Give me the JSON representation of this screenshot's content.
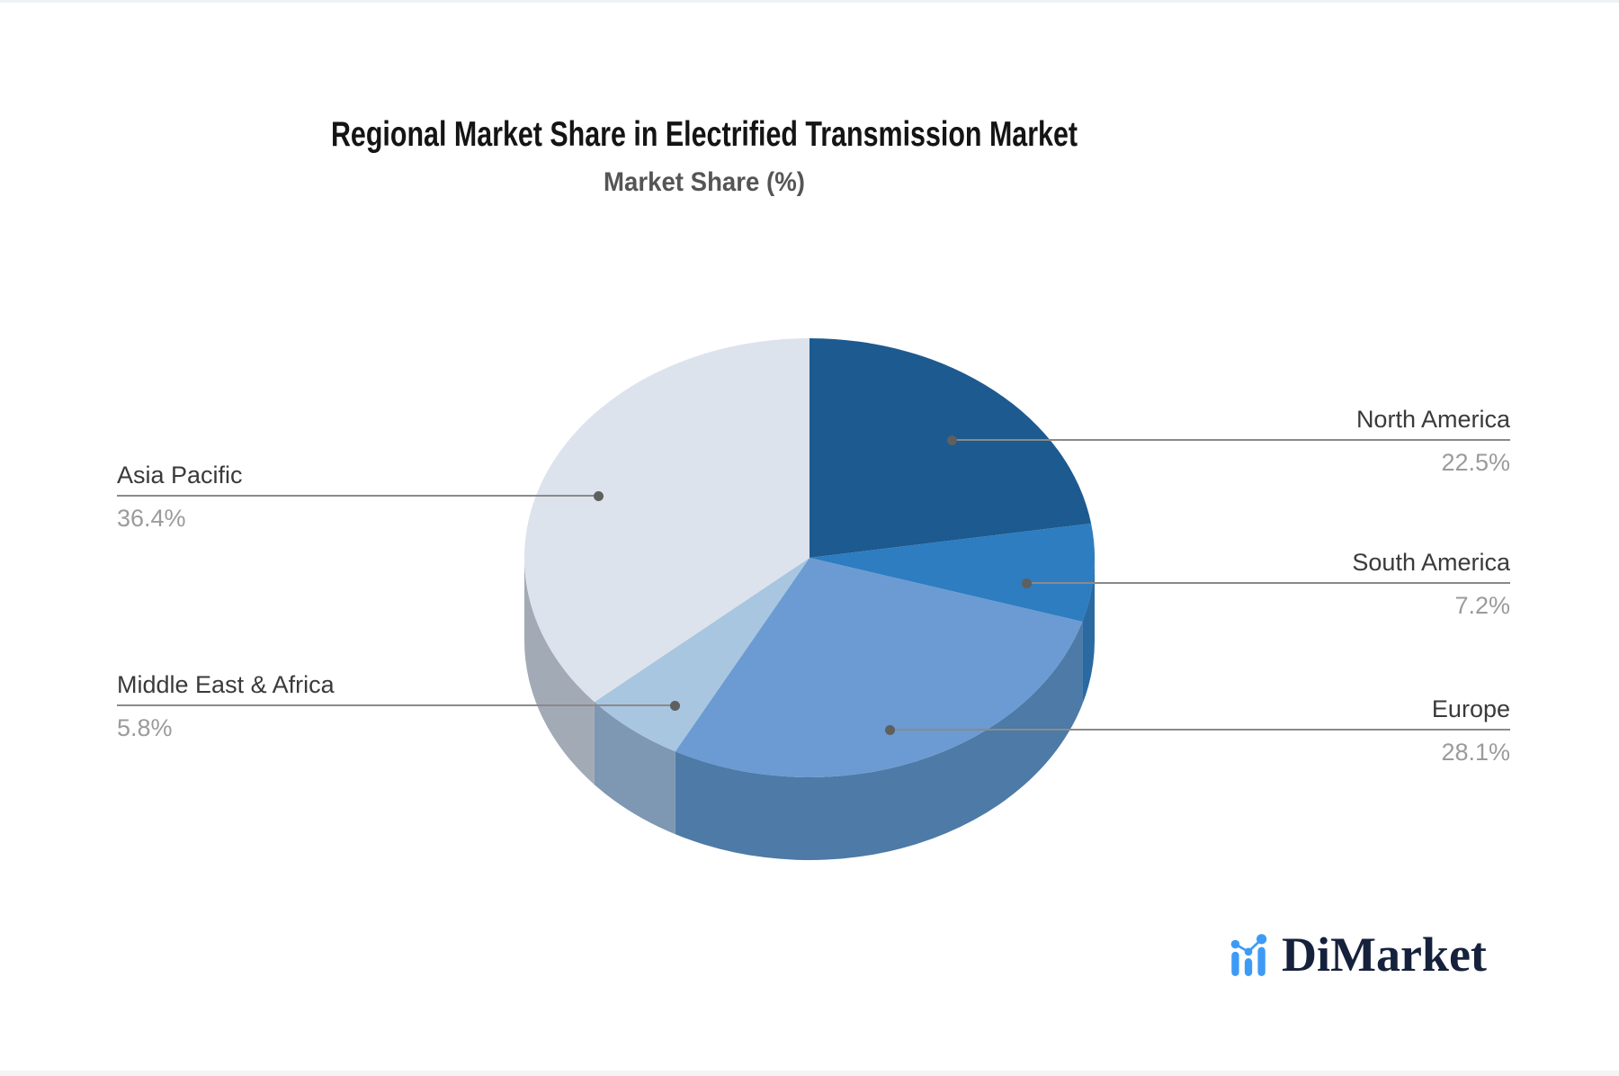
{
  "header": {
    "title": "Regional Market Share in Electrified Transmission Market",
    "subtitle": "Market Share (%)"
  },
  "chart_data": {
    "type": "pie",
    "style": "3d-pie",
    "title": "Regional Market Share in Electrified Transmission Market",
    "subtitle": "Market Share (%)",
    "unit": "%",
    "start_angle_deg": 90,
    "direction": "clockwise",
    "legend": "none",
    "slices": [
      {
        "label": "North America",
        "value": 22.5,
        "display": "22.5%",
        "color": "#1d5a90",
        "side_color": "#1a4d7d",
        "label_side": "right"
      },
      {
        "label": "South America",
        "value": 7.2,
        "display": "7.2%",
        "color": "#2d7dc0",
        "side_color": "#2a6aa1",
        "label_side": "right"
      },
      {
        "label": "Europe",
        "value": 28.1,
        "display": "28.1%",
        "color": "#6b9bd2",
        "side_color": "#4d7aa6",
        "label_side": "right"
      },
      {
        "label": "Middle East & Africa",
        "value": 5.8,
        "display": "5.8%",
        "color": "#a9c6e0",
        "side_color": "#7e97b2",
        "label_side": "left"
      },
      {
        "label": "Asia Pacific",
        "value": 36.4,
        "display": "36.4%",
        "color": "#dce3ed",
        "side_color": "#a2aab6",
        "label_side": "left"
      }
    ],
    "leader_style": {
      "line_color": "#8a8a8a",
      "dot_color": "#5f5f5f",
      "label_color": "#3a3a3a",
      "value_color": "#9b9b9b"
    }
  },
  "logo": {
    "text": "DiMarket",
    "icon": "bar-chart-trend-icon",
    "icon_color": "#3e9bf5",
    "text_color": "#16213c"
  }
}
